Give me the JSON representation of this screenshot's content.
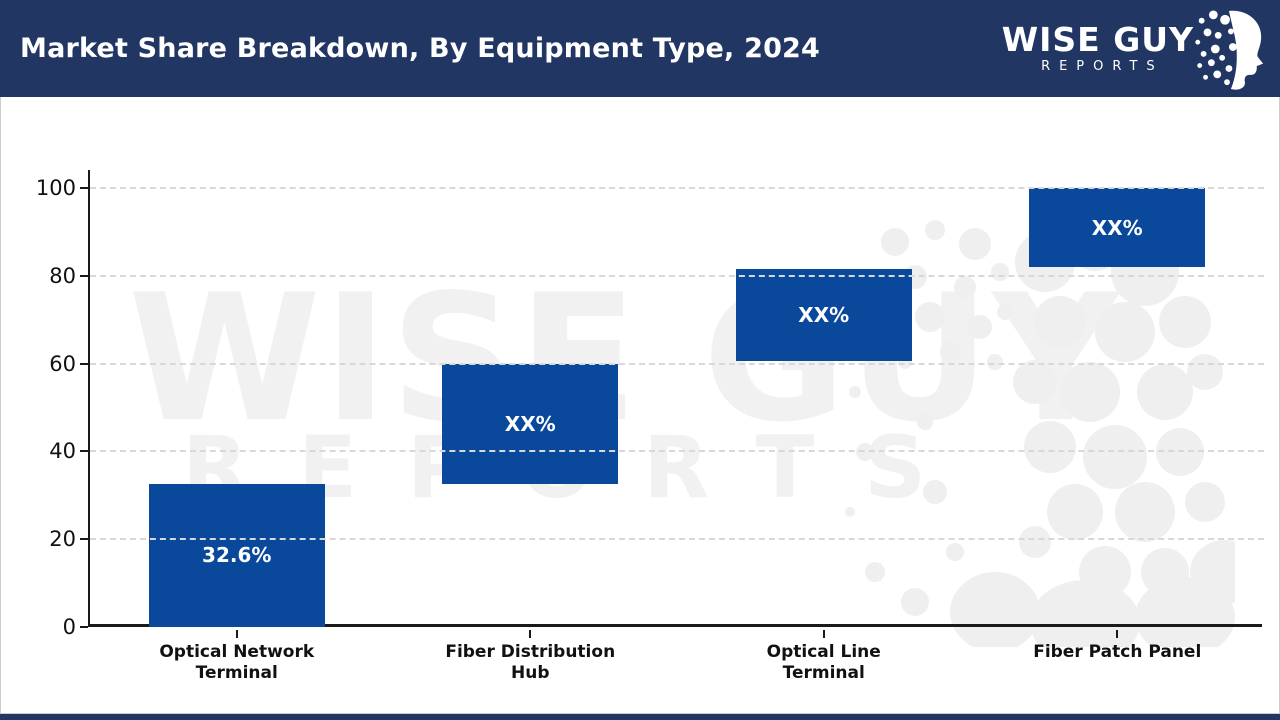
{
  "header": {
    "title": "Market Share Breakdown, By Equipment Type, 2024",
    "logo": {
      "line1": "WISE GUY",
      "line2": "REPORTS"
    }
  },
  "watermark": {
    "line1": "WISE GUY",
    "line2": "REPORTS"
  },
  "colors": {
    "header_bg": "#213663",
    "footer_bg": "#213663",
    "bar": "#09489b",
    "grid": "#d8d8d8",
    "watermark": "#f0f0f0",
    "title_text": "#ffffff",
    "bar_label_text": "#ffffff"
  },
  "chart_data": {
    "type": "bar",
    "subtype": "waterfall-floating-bars",
    "title": "Market Share Breakdown, By Equipment Type, 2024",
    "xlabel": "",
    "ylabel": "",
    "ylim": [
      0,
      100
    ],
    "yticks": [
      0,
      20,
      40,
      60,
      80,
      100
    ],
    "grid": "horizontal-dashed",
    "legend": "none",
    "bar_color": "#09489b",
    "categories": [
      "Optical Network Terminal",
      "Fiber Distribution Hub",
      "Optical Line Terminal",
      "Fiber Patch Panel"
    ],
    "categories_display": [
      "Optical Network\nTerminal",
      "Fiber Distribution\nHub",
      "Optical Line\nTerminal",
      "Fiber Patch Panel"
    ],
    "bars": [
      {
        "category": "Optical Network Terminal",
        "base": 0,
        "top": 32.6,
        "label": "32.6%"
      },
      {
        "category": "Fiber Distribution Hub",
        "base": 32.6,
        "top": 60,
        "label": "XX%"
      },
      {
        "category": "Optical Line Terminal",
        "base": 60.5,
        "top": 81.5,
        "label": "XX%"
      },
      {
        "category": "Fiber Patch Panel",
        "base": 82,
        "top": 100,
        "label": "XX%"
      }
    ]
  }
}
